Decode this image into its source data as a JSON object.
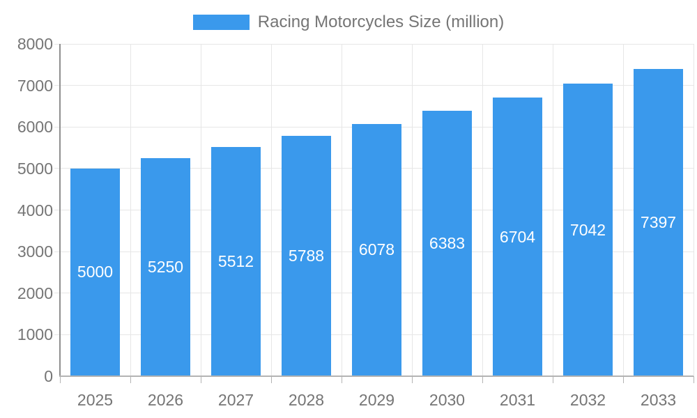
{
  "legend": {
    "label": "Racing Motorcycles Size (million)"
  },
  "chart_data": {
    "type": "bar",
    "title": "Racing Motorcycles Size (million)",
    "categories": [
      "2025",
      "2026",
      "2027",
      "2028",
      "2029",
      "2030",
      "2031",
      "2032",
      "2033"
    ],
    "series": [
      {
        "name": "Racing Motorcycles Size (million)",
        "values": [
          5000,
          5250,
          5512,
          5788,
          6078,
          6383,
          6704,
          7042,
          7397
        ]
      }
    ],
    "xlabel": "",
    "ylabel": "",
    "ylim": [
      0,
      8000
    ],
    "ytick_step": 1000,
    "grid": true,
    "legend_position": "top",
    "value_labels": "inside-center",
    "colors": {
      "bar": "#3A99EC",
      "bar_value_text": "#ffffff",
      "axis_text": "#757575",
      "gridline": "#e6e6e6",
      "x_axis_line": "#b3b3b3",
      "y_axis_line": "#8f8f8f",
      "background": "#ffffff"
    }
  }
}
